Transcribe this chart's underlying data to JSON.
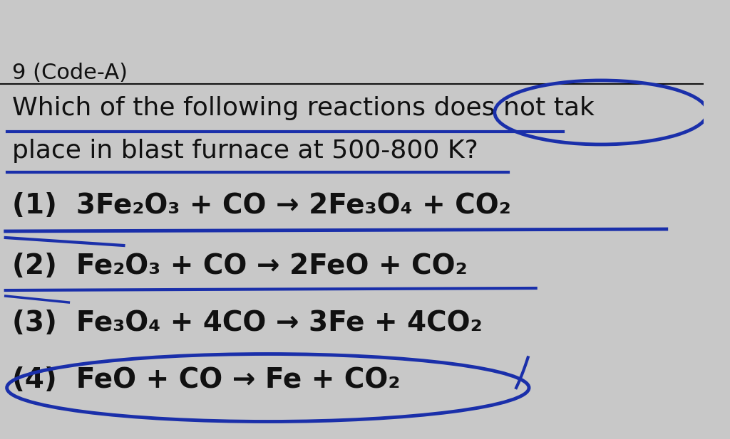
{
  "background_color": "#c8c8c8",
  "text_color": "#111111",
  "blue_color": "#1a2faa",
  "header": "9 (Code-A)",
  "q_line1": "Which of the following reactions does not tak",
  "q_line2": "place in blast furnace at 500-800 K?",
  "opt1": "(1)  3Fe₂O₃ + CO → 2Fe₃O₄ + CO₂",
  "opt2": "(2)  Fe₂O₃ + CO → 2FeO + CO₂",
  "opt3": "(3)  Fe₃O₄ + 4CO → 3Fe + 4CO₂",
  "opt4": "(4)  FeO + CO → Fe + CO₂",
  "header_fs": 22,
  "question_fs": 26,
  "option_fs": 28,
  "fig_width": 10.24,
  "fig_height": 6.17
}
